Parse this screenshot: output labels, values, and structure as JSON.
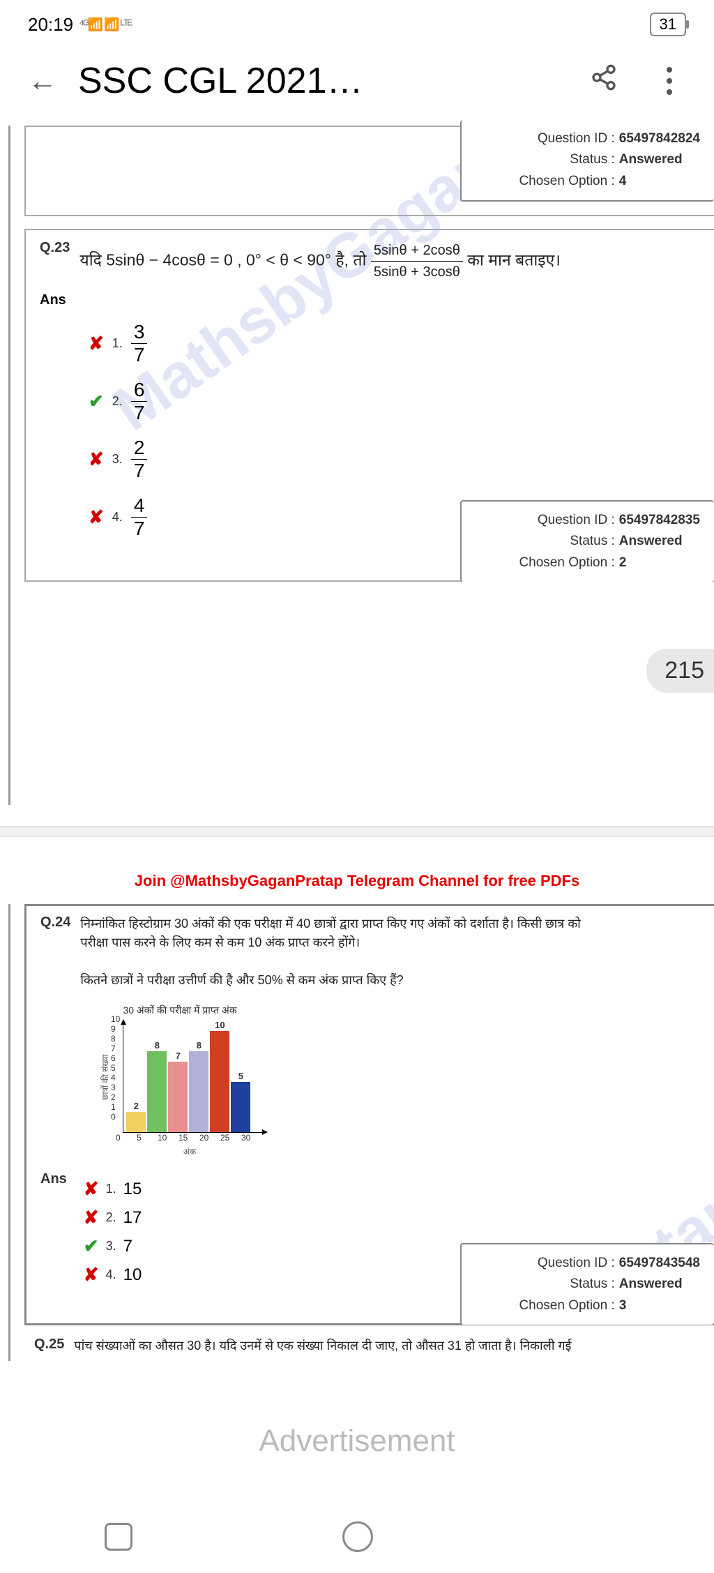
{
  "status_bar": {
    "time": "20:19",
    "signal_text": "4G",
    "lte_text": "Vo LTE",
    "battery": "31"
  },
  "app_bar": {
    "title": "SSC CGL 2021…"
  },
  "status_box_prev": {
    "qid_label": "Question ID :",
    "qid": "65497842824",
    "status_label": "Status :",
    "status": "Answered",
    "chosen_label": "Chosen Option :",
    "chosen": "4"
  },
  "q23": {
    "num": "Q.23",
    "text_pre": "यदि 5sinθ − 4cosθ = 0 , 0° < θ < 90° है, तो",
    "frac_num": "5sinθ + 2cosθ",
    "frac_den": "5sinθ + 3cosθ",
    "text_post": "का मान बताइए।",
    "ans_label": "Ans",
    "options": [
      {
        "mark": "wrong",
        "n": "1.",
        "num": "3",
        "den": "7"
      },
      {
        "mark": "right",
        "n": "2.",
        "num": "6",
        "den": "7"
      },
      {
        "mark": "wrong",
        "n": "3.",
        "num": "2",
        "den": "7"
      },
      {
        "mark": "wrong",
        "n": "4.",
        "num": "4",
        "den": "7"
      }
    ],
    "status_box": {
      "qid_label": "Question ID :",
      "qid": "65497842835",
      "status_label": "Status :",
      "status": "Answered",
      "chosen_label": "Chosen Option :",
      "chosen": "2"
    }
  },
  "watermark": "MathsbyGagan",
  "page_badge": "215",
  "telegram": "Join @MathsbyGaganPratap Telegram Channel for free PDFs",
  "q24": {
    "num": "Q.24",
    "line1": "निम्नांकित हिस्टोग्राम 30 अंकों की एक परीक्षा में 40 छात्रों द्वारा प्राप्त किए गए अंकों को दर्शाता है। किसी छात्र को",
    "line2": "परीक्षा पास करने के लिए कम से कम 10 अंक प्राप्त करने होंगे।",
    "line3": "कितने छात्रों ने परीक्षा उत्तीर्ण की है और 50% से कम अंक प्राप्त किए हैं?",
    "ans_label": "Ans",
    "chart": {
      "title": "30 अंकों की परीक्षा में प्राप्त अंक",
      "ylabel": "छात्रों की संख्या",
      "xlabel": "अंक",
      "ymax": 11,
      "yticks": [
        "0",
        "1",
        "2",
        "3",
        "4",
        "5",
        "6",
        "7",
        "8",
        "9",
        "10"
      ],
      "xticks": [
        "0",
        "5",
        "10",
        "15",
        "20",
        "25",
        "30"
      ],
      "bars": [
        {
          "v": 2,
          "color": "#f0d060",
          "label": "2"
        },
        {
          "v": 8,
          "color": "#70c060",
          "label": "8"
        },
        {
          "v": 7,
          "color": "#e89090",
          "label": "7"
        },
        {
          "v": 8,
          "color": "#b0b0d8",
          "label": "8"
        },
        {
          "v": 10,
          "color": "#d04020",
          "label": "10"
        },
        {
          "v": 5,
          "color": "#2040a0",
          "label": "5"
        }
      ]
    },
    "options": [
      {
        "mark": "wrong",
        "n": "1.",
        "v": "15"
      },
      {
        "mark": "wrong",
        "n": "2.",
        "v": "17"
      },
      {
        "mark": "right",
        "n": "3.",
        "v": "7"
      },
      {
        "mark": "wrong",
        "n": "4.",
        "v": "10"
      }
    ],
    "status_box": {
      "qid_label": "Question ID :",
      "qid": "65497843548",
      "status_label": "Status :",
      "status": "Answered",
      "chosen_label": "Chosen Option :",
      "chosen": "3"
    }
  },
  "q25": {
    "num": "Q.25",
    "text": "पांच संख्याओं का औसत 30 है। यदि उनमें से एक संख्या निकाल दी जाए, तो औसत 31 हो जाता है। निकाली गई"
  },
  "ad_text": "Advertisement",
  "watermark2": "Pratap"
}
